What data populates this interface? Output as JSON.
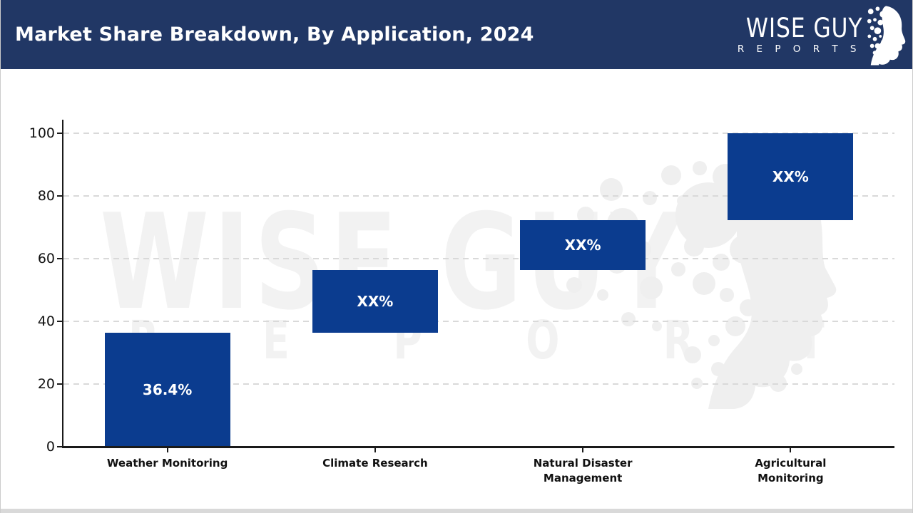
{
  "header": {
    "title": "Market Share Breakdown, By Application, 2024",
    "logo": {
      "line1": "WISE GUY",
      "line2": "R E P O R T S"
    }
  },
  "watermark": {
    "line1": "WISE GUY",
    "line2": "R E P O R T S"
  },
  "chart_data": {
    "type": "bar",
    "subtype": "waterfall",
    "title": "Market Share Breakdown, By Application, 2024",
    "xlabel": "",
    "ylabel": "",
    "ylim": [
      0,
      104
    ],
    "yticks": [
      0,
      20,
      40,
      60,
      80,
      100
    ],
    "grid": "horizontal-dashed",
    "legend": "none",
    "categories": [
      "Weather Monitoring",
      "Climate Research",
      "Natural Disaster Management",
      "Agricultural Monitoring"
    ],
    "tick_labels": [
      "Weather Monitoring",
      "Climate Research",
      "Natural Disaster\nManagement",
      "Agricultural\nMonitoring"
    ],
    "bars": [
      {
        "category": "Weather Monitoring",
        "start": 0,
        "end": 36.4,
        "value": 36.4,
        "label": "36.4%"
      },
      {
        "category": "Climate Research",
        "start": 36.4,
        "end": 56.4,
        "value": 20.0,
        "label": "XX%"
      },
      {
        "category": "Natural Disaster Management",
        "start": 56.4,
        "end": 72.3,
        "value": 15.9,
        "label": "XX%"
      },
      {
        "category": "Agricultural Monitoring",
        "start": 72.3,
        "end": 100,
        "value": 27.7,
        "label": "XX%"
      }
    ],
    "bar_color": "#0b3c8f",
    "bar_label_color": "#ffffff"
  },
  "colors": {
    "header_bg": "#213765",
    "bar": "#0b3c8f",
    "grid": "#d9d9d9",
    "axis": "#1a1a1a",
    "footer_strip": "#d9d9d9",
    "watermark": "#f2f2f2",
    "text": "#111111"
  }
}
